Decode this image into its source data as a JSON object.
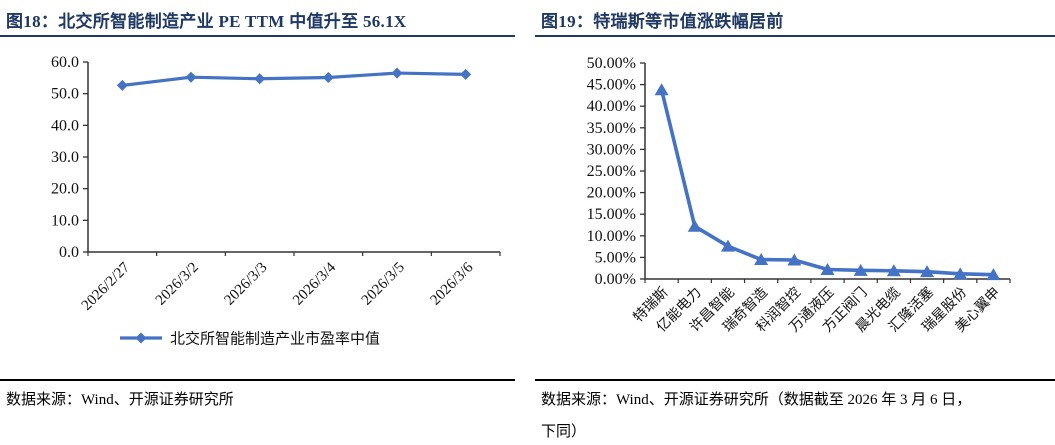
{
  "figures": [
    {
      "label": "图18",
      "title": "图18：北交所智能制造产业 PE TTM 中值升至 56.1X",
      "source": "数据来源：Wind、开源证券研究所"
    },
    {
      "label": "图19",
      "title": "图19：特瑞斯等市值涨跌幅居前",
      "source": "数据来源：Wind、开源证券研究所（数据截至 2026 年 3 月 6 日，\n下同）"
    }
  ],
  "colors": {
    "series_blue": "#4472C4",
    "title_navy": "#1F3864",
    "axis": "#333333",
    "tick_text": "#111111",
    "divider_black": "#000000"
  },
  "chart_data": [
    {
      "type": "line",
      "title": "北交所智能制造产业 PE TTM 中值升至 56.1X",
      "legend": "北交所智能制造产业市盈率中值",
      "legend_position": "bottom",
      "categories": [
        "2026/2/27",
        "2026/3/2",
        "2026/3/3",
        "2026/3/4",
        "2026/3/5",
        "2026/3/6"
      ],
      "values": [
        52.6,
        55.2,
        54.7,
        55.1,
        56.5,
        56.1
      ],
      "xlabel": "",
      "ylabel": "",
      "ylim": [
        0,
        60
      ],
      "ytick_step": 10,
      "ytick_format": "fixed1",
      "marker": "diamond",
      "line_color": "#4472C4",
      "grid": false
    },
    {
      "type": "line",
      "title": "特瑞斯等市值涨跌幅居前",
      "legend": null,
      "categories": [
        "特瑞斯",
        "亿能电力",
        "许昌智能",
        "瑞奇智造",
        "科润智控",
        "万通液压",
        "方正阀门",
        "晨光电缆",
        "汇隆活塞",
        "瑞星股份",
        "美心翼申"
      ],
      "values": [
        43.8,
        12.2,
        7.6,
        4.5,
        4.4,
        2.2,
        2.0,
        1.9,
        1.7,
        1.2,
        1.0
      ],
      "unit": "percent",
      "xlabel": "",
      "ylabel": "",
      "ylim": [
        0,
        50
      ],
      "ytick_step": 5,
      "ytick_format": "pct2",
      "marker": "triangle",
      "line_color": "#4472C4",
      "grid": false
    }
  ]
}
